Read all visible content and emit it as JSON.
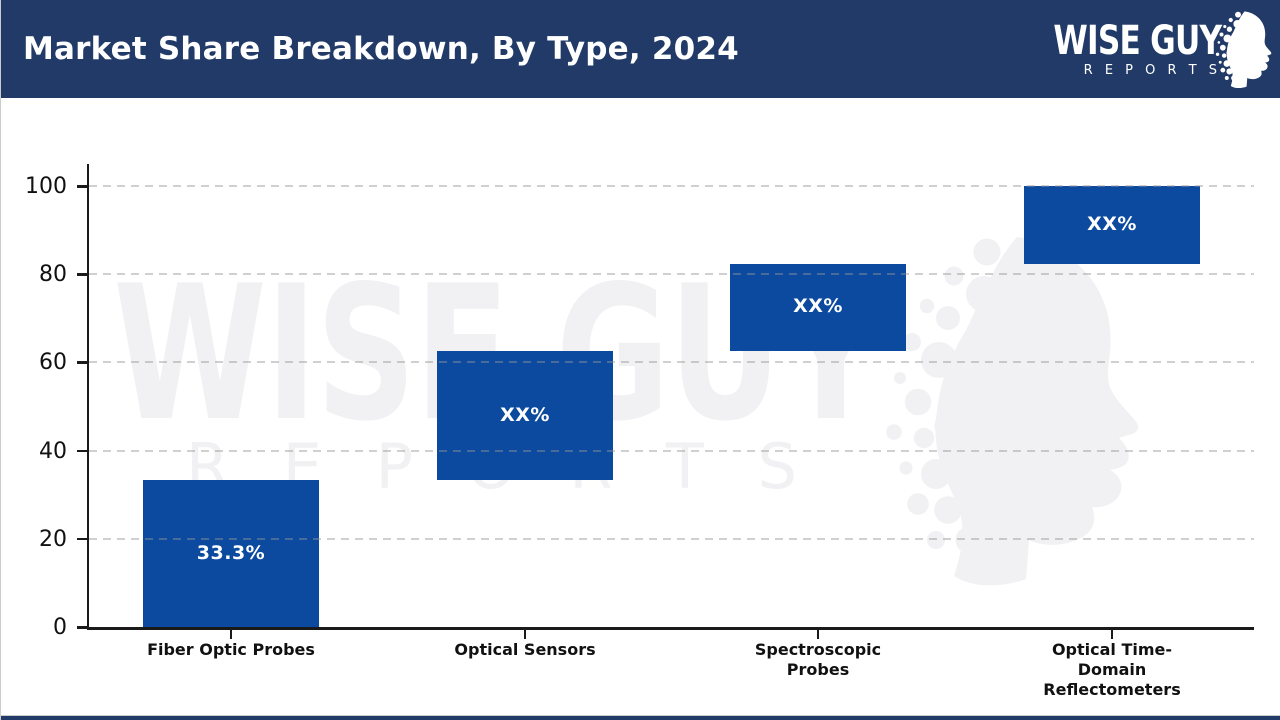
{
  "header": {
    "title": "Market Share Breakdown, By Type, 2024",
    "logo": {
      "line1": "WISE GUY",
      "line2": "R E P O R T S"
    }
  },
  "watermark": {
    "line1": "WISE GUY",
    "line2": "R E P O R T S"
  },
  "chart_data": {
    "type": "bar",
    "variant": "waterfall",
    "title": "Market Share Breakdown, By Type, 2024",
    "categories": [
      "Fiber Optic Probes",
      "Optical Sensors",
      "Spectroscopic\nProbes",
      "Optical Time-\nDomain\nReflectometers"
    ],
    "segments": [
      {
        "category": "Fiber Optic Probes",
        "start": 0,
        "end": 33.3,
        "label": "33.3%"
      },
      {
        "category": "Optical Sensors",
        "start": 33.3,
        "end": 62.6,
        "label": "XX%"
      },
      {
        "category": "Spectroscopic Probes",
        "start": 62.6,
        "end": 82.3,
        "label": "XX%"
      },
      {
        "category": "Optical Time-Domain Reflectometers",
        "start": 82.3,
        "end": 100,
        "label": "XX%"
      }
    ],
    "ylim": [
      0,
      100
    ],
    "yticks": [
      0,
      20,
      40,
      60,
      80,
      100
    ],
    "xlabel": "",
    "ylabel": "",
    "grid": "horizontal-dashed",
    "legend": "none",
    "bar_color": "#0B4A9E",
    "bar_label_color": "#FFFFFF"
  },
  "colors": {
    "header_bg": "#213A68",
    "footer_bg": "#213A68",
    "bar": "#0B4A9E",
    "axis": "#1A1A1A",
    "gridline": "#E0E0E0",
    "watermark": "#F1F1F3",
    "title_text": "#FFFFFF",
    "tick_text": "#111111"
  }
}
